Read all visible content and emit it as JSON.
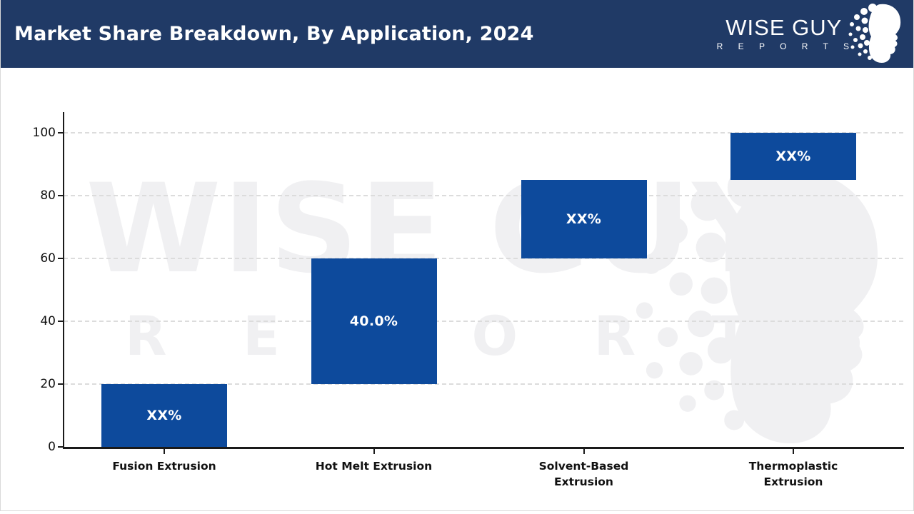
{
  "header": {
    "title": "Market Share Breakdown, By Application, 2024",
    "logo": {
      "line1": "WISE GUY",
      "line2": "R E P O R T S"
    }
  },
  "watermark": {
    "line1": "WISE GUY",
    "line2": "R E P O R T S"
  },
  "chart_data": {
    "type": "bar",
    "variant": "waterfall",
    "title": "Market Share Breakdown, By Application, 2024",
    "categories": [
      "Fusion Extrusion",
      "Hot Melt Extrusion",
      "Solvent-Based Extrusion",
      "Thermoplastic Extrusion"
    ],
    "tick_label_lines": [
      [
        "Fusion Extrusion"
      ],
      [
        "Hot Melt Extrusion"
      ],
      [
        "Solvent-Based",
        "Extrusion"
      ],
      [
        "Thermoplastic",
        "Extrusion"
      ]
    ],
    "values": [
      20,
      40,
      25,
      15
    ],
    "cumulative_start": [
      0,
      20,
      60,
      85
    ],
    "cumulative_end": [
      20,
      60,
      85,
      100
    ],
    "bar_labels": [
      "XX%",
      "40.0%",
      "XX%",
      "XX%"
    ],
    "xlabel": "",
    "ylabel": "",
    "ylim": [
      0,
      105
    ],
    "yticks": [
      0,
      20,
      40,
      60,
      80,
      100
    ],
    "grid": "horizontal-dashed",
    "legend": "none",
    "bar_color": "#0d4a9c",
    "bar_label_color": "#ffffff",
    "header_color": "#203a66",
    "watermark_color": "#f0f0f2"
  }
}
